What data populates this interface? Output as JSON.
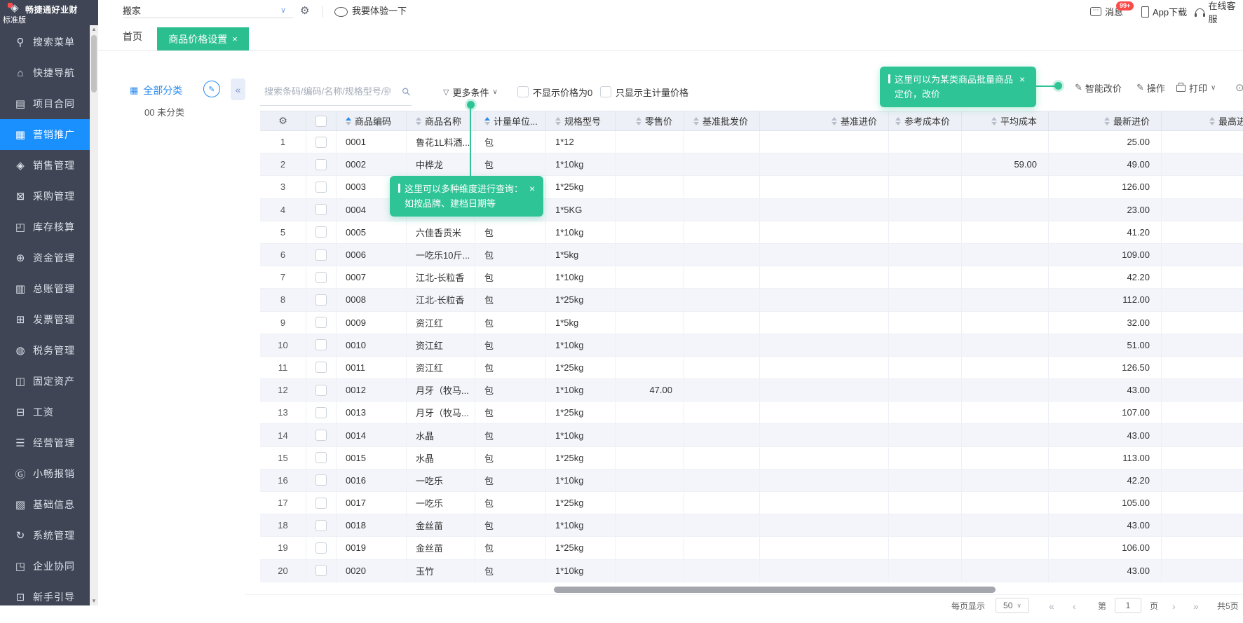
{
  "logo": {
    "name": "畅捷通好业财",
    "edition": "标准版"
  },
  "topbar": {
    "workspace": "搬家",
    "experience": "我要体验一下",
    "messages": "消息",
    "badge": "99+",
    "app_download": "App下载",
    "support": "在线客服"
  },
  "sidebar": {
    "items": [
      {
        "label": "搜索菜单",
        "icon": "⚲",
        "name": "search-menu",
        "active": false
      },
      {
        "label": "快捷导航",
        "icon": "⌂",
        "name": "quick-nav",
        "active": false
      },
      {
        "label": "项目合同",
        "icon": "▤",
        "name": "project-contract",
        "active": false
      },
      {
        "label": "营销推广",
        "icon": "▦",
        "name": "marketing",
        "active": true
      },
      {
        "label": "销售管理",
        "icon": "◈",
        "name": "sales",
        "active": false
      },
      {
        "label": "采购管理",
        "icon": "⊠",
        "name": "purchasing",
        "active": false
      },
      {
        "label": "库存核算",
        "icon": "◰",
        "name": "inventory",
        "active": false
      },
      {
        "label": "资金管理",
        "icon": "⊕",
        "name": "funds",
        "active": false
      },
      {
        "label": "总账管理",
        "icon": "▥",
        "name": "general-ledger",
        "active": false
      },
      {
        "label": "发票管理",
        "icon": "⊞",
        "name": "invoices",
        "active": false
      },
      {
        "label": "税务管理",
        "icon": "◍",
        "name": "tax",
        "active": false
      },
      {
        "label": "固定资产",
        "icon": "◫",
        "name": "fixed-assets",
        "active": false
      },
      {
        "label": "工资",
        "icon": "⊟",
        "name": "payroll",
        "active": false
      },
      {
        "label": "经营管理",
        "icon": "☰",
        "name": "operations",
        "active": false
      },
      {
        "label": "小畅报销",
        "icon": "Ⓖ",
        "name": "expense",
        "active": false
      },
      {
        "label": "基础信息",
        "icon": "▧",
        "name": "base-info",
        "active": false
      },
      {
        "label": "系统管理",
        "icon": "↻",
        "name": "system",
        "active": false
      },
      {
        "label": "企业协同",
        "icon": "◳",
        "name": "collaboration",
        "active": false
      },
      {
        "label": "新手引导",
        "icon": "⊡",
        "name": "onboarding",
        "active": false
      }
    ]
  },
  "tabs": {
    "home": "首页",
    "active": "商品价格设置",
    "close": "×"
  },
  "category_panel": {
    "all": "全部分类",
    "collapse": "«",
    "uncategorized": "00 未分类"
  },
  "filter_bar": {
    "search_placeholder": "搜索条码/编码/名称/规格型号/别名",
    "more": "更多条件",
    "hide_zero": "不显示价格为0",
    "main_unit_only": "只显示主计量价格"
  },
  "toolbar": {
    "smart_reprice": "智能改价",
    "action": "操作",
    "print": "打印"
  },
  "tooltips": {
    "batch": {
      "line1": "这里可以为某类商品批量商品",
      "line2": "定价，改价",
      "close": "×"
    },
    "query": {
      "line1": "这里可以多种维度进行查询：",
      "line2": "如按品牌、建档日期等",
      "close": "×"
    }
  },
  "table": {
    "columns": [
      {
        "type": "gear",
        "label": ""
      },
      {
        "type": "checkbox",
        "label": ""
      },
      {
        "label": "商品编码",
        "sort": "asc"
      },
      {
        "label": "商品名称",
        "sort": "none"
      },
      {
        "label": "计量单位...",
        "sort": "asc"
      },
      {
        "label": "规格型号",
        "sort": "none"
      },
      {
        "label": "零售价",
        "sort": "none",
        "align": "right"
      },
      {
        "label": "基准批发价",
        "sort": "none",
        "align": "right"
      },
      {
        "label": "基准进价",
        "sort": "none",
        "align": "right"
      },
      {
        "label": "参考成本价",
        "sort": "none",
        "align": "right"
      },
      {
        "label": "平均成本",
        "sort": "none",
        "align": "right"
      },
      {
        "label": "最新进价",
        "sort": "none",
        "align": "right"
      },
      {
        "label": "最高进价",
        "sort": "none",
        "align": "right"
      }
    ],
    "rows": [
      {
        "n": "1",
        "code": "0001",
        "name": "鲁花1L料酒...",
        "unit": "包",
        "spec": "1*12",
        "retail": "",
        "base_wholesale": "",
        "base_purchase": "",
        "ref_cost": "",
        "avg_cost": "",
        "latest": "25.00",
        "highest": ""
      },
      {
        "n": "2",
        "code": "0002",
        "name": "中桦龙",
        "unit": "包",
        "spec": "1*10kg",
        "retail": "",
        "base_wholesale": "",
        "base_purchase": "",
        "ref_cost": "",
        "avg_cost": "59.00",
        "latest": "49.00",
        "highest": ""
      },
      {
        "n": "3",
        "code": "0003",
        "name": "",
        "unit": "",
        "spec": "1*25kg",
        "retail": "",
        "base_wholesale": "",
        "base_purchase": "",
        "ref_cost": "",
        "avg_cost": "",
        "latest": "126.00",
        "highest": ""
      },
      {
        "n": "4",
        "code": "0004",
        "name": "",
        "unit": "",
        "spec": "1*5KG",
        "retail": "",
        "base_wholesale": "",
        "base_purchase": "",
        "ref_cost": "",
        "avg_cost": "",
        "latest": "23.00",
        "highest": ""
      },
      {
        "n": "5",
        "code": "0005",
        "name": "六佳香贡米",
        "unit": "包",
        "spec": "1*10kg",
        "retail": "",
        "base_wholesale": "",
        "base_purchase": "",
        "ref_cost": "",
        "avg_cost": "",
        "latest": "41.20",
        "highest": ""
      },
      {
        "n": "6",
        "code": "0006",
        "name": "一吃乐10斤...",
        "unit": "包",
        "spec": "1*5kg",
        "retail": "",
        "base_wholesale": "",
        "base_purchase": "",
        "ref_cost": "",
        "avg_cost": "",
        "latest": "109.00",
        "highest": ""
      },
      {
        "n": "7",
        "code": "0007",
        "name": "江北-长粒香",
        "unit": "包",
        "spec": "1*10kg",
        "retail": "",
        "base_wholesale": "",
        "base_purchase": "",
        "ref_cost": "",
        "avg_cost": "",
        "latest": "42.20",
        "highest": ""
      },
      {
        "n": "8",
        "code": "0008",
        "name": "江北-长粒香",
        "unit": "包",
        "spec": "1*25kg",
        "retail": "",
        "base_wholesale": "",
        "base_purchase": "",
        "ref_cost": "",
        "avg_cost": "",
        "latest": "112.00",
        "highest": ""
      },
      {
        "n": "9",
        "code": "0009",
        "name": "资江红",
        "unit": "包",
        "spec": "1*5kg",
        "retail": "",
        "base_wholesale": "",
        "base_purchase": "",
        "ref_cost": "",
        "avg_cost": "",
        "latest": "32.00",
        "highest": ""
      },
      {
        "n": "10",
        "code": "0010",
        "name": "资江红",
        "unit": "包",
        "spec": "1*10kg",
        "retail": "",
        "base_wholesale": "",
        "base_purchase": "",
        "ref_cost": "",
        "avg_cost": "",
        "latest": "51.00",
        "highest": ""
      },
      {
        "n": "11",
        "code": "0011",
        "name": "资江红",
        "unit": "包",
        "spec": "1*25kg",
        "retail": "",
        "base_wholesale": "",
        "base_purchase": "",
        "ref_cost": "",
        "avg_cost": "",
        "latest": "126.50",
        "highest": ""
      },
      {
        "n": "12",
        "code": "0012",
        "name": "月牙（牧马...",
        "unit": "包",
        "spec": "1*10kg",
        "retail": "47.00",
        "base_wholesale": "",
        "base_purchase": "",
        "ref_cost": "",
        "avg_cost": "",
        "latest": "43.00",
        "highest": ""
      },
      {
        "n": "13",
        "code": "0013",
        "name": "月牙（牧马...",
        "unit": "包",
        "spec": "1*25kg",
        "retail": "",
        "base_wholesale": "",
        "base_purchase": "",
        "ref_cost": "",
        "avg_cost": "",
        "latest": "107.00",
        "highest": ""
      },
      {
        "n": "14",
        "code": "0014",
        "name": "水晶",
        "unit": "包",
        "spec": "1*10kg",
        "retail": "",
        "base_wholesale": "",
        "base_purchase": "",
        "ref_cost": "",
        "avg_cost": "",
        "latest": "43.00",
        "highest": ""
      },
      {
        "n": "15",
        "code": "0015",
        "name": "水晶",
        "unit": "包",
        "spec": "1*25kg",
        "retail": "",
        "base_wholesale": "",
        "base_purchase": "",
        "ref_cost": "",
        "avg_cost": "",
        "latest": "113.00",
        "highest": ""
      },
      {
        "n": "16",
        "code": "0016",
        "name": "一吃乐",
        "unit": "包",
        "spec": "1*10kg",
        "retail": "",
        "base_wholesale": "",
        "base_purchase": "",
        "ref_cost": "",
        "avg_cost": "",
        "latest": "42.20",
        "highest": ""
      },
      {
        "n": "17",
        "code": "0017",
        "name": "一吃乐",
        "unit": "包",
        "spec": "1*25kg",
        "retail": "",
        "base_wholesale": "",
        "base_purchase": "",
        "ref_cost": "",
        "avg_cost": "",
        "latest": "105.00",
        "highest": ""
      },
      {
        "n": "18",
        "code": "0018",
        "name": "金丝苗",
        "unit": "包",
        "spec": "1*10kg",
        "retail": "",
        "base_wholesale": "",
        "base_purchase": "",
        "ref_cost": "",
        "avg_cost": "",
        "latest": "43.00",
        "highest": ""
      },
      {
        "n": "19",
        "code": "0019",
        "name": "金丝苗",
        "unit": "包",
        "spec": "1*25kg",
        "retail": "",
        "base_wholesale": "",
        "base_purchase": "",
        "ref_cost": "",
        "avg_cost": "",
        "latest": "106.00",
        "highest": ""
      },
      {
        "n": "20",
        "code": "0020",
        "name": "玉竹",
        "unit": "包",
        "spec": "1*10kg",
        "retail": "",
        "base_wholesale": "",
        "base_purchase": "",
        "ref_cost": "",
        "avg_cost": "",
        "latest": "43.00",
        "highest": ""
      }
    ]
  },
  "pagination": {
    "per_page_label": "每页显示",
    "per_page": "50",
    "first": "«",
    "prev": "‹",
    "page_pre": "第",
    "page": "1",
    "page_post": "页",
    "next": "›",
    "last": "»",
    "total": "共5页"
  },
  "colors": {
    "accent_green": "#2ec496",
    "accent_blue": "#2a8cf0",
    "sidebar_active": "#1a90ff",
    "badge_red": "#fa4b4b"
  }
}
